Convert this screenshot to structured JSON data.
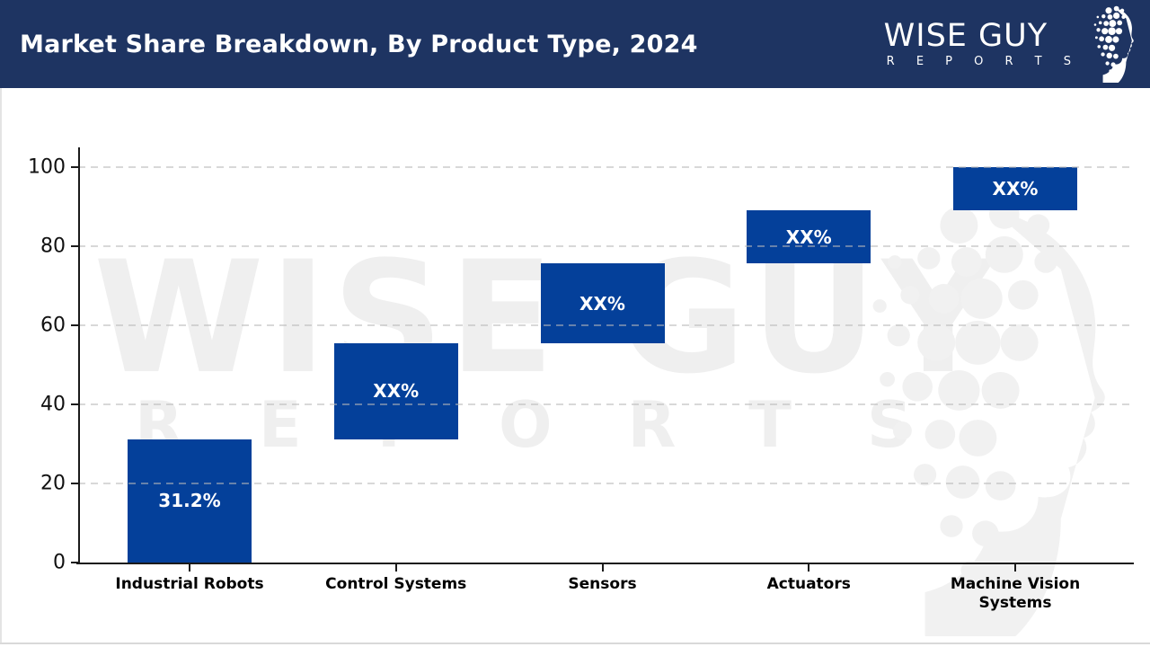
{
  "header": {
    "title": "Market Share Breakdown, By Product Type, 2024",
    "background": "#1e3462",
    "logo": {
      "line1": "WISE GUY",
      "line2": "R E P O R T S",
      "icon": "dotted-head-profile"
    }
  },
  "watermark": {
    "line1": "WISE GUY",
    "line2": "REPORTS",
    "icon": "dotted-head-profile"
  },
  "chart_data": {
    "type": "bar",
    "subtype": "waterfall",
    "title": "Market Share Breakdown, By Product Type, 2024",
    "xlabel": "",
    "ylabel": "",
    "categories": [
      "Industrial Robots",
      "Control Systems",
      "Sensors",
      "Actuators",
      "Machine Vision Systems"
    ],
    "segments": [
      {
        "category": "Industrial Robots",
        "start": 0,
        "end": 31.2,
        "label": "31.2%"
      },
      {
        "category": "Control Systems",
        "start": 31.2,
        "end": 55.4,
        "label": "XX%"
      },
      {
        "category": "Sensors",
        "start": 55.4,
        "end": 75.6,
        "label": "XX%"
      },
      {
        "category": "Actuators",
        "start": 75.6,
        "end": 89.0,
        "label": "XX%"
      },
      {
        "category": "Machine Vision Systems",
        "start": 89.0,
        "end": 100.0,
        "label": "XX%"
      }
    ],
    "yticks": [
      0,
      20,
      40,
      60,
      80,
      100
    ],
    "ylim": [
      0,
      105
    ],
    "grid": "horizontal-dashed-over-bars",
    "legend": "none",
    "bar_color": "#04409a",
    "axis_color": "#1a1a1a",
    "grid_color": "#dcdcdc",
    "label_color": "#ffffff"
  }
}
